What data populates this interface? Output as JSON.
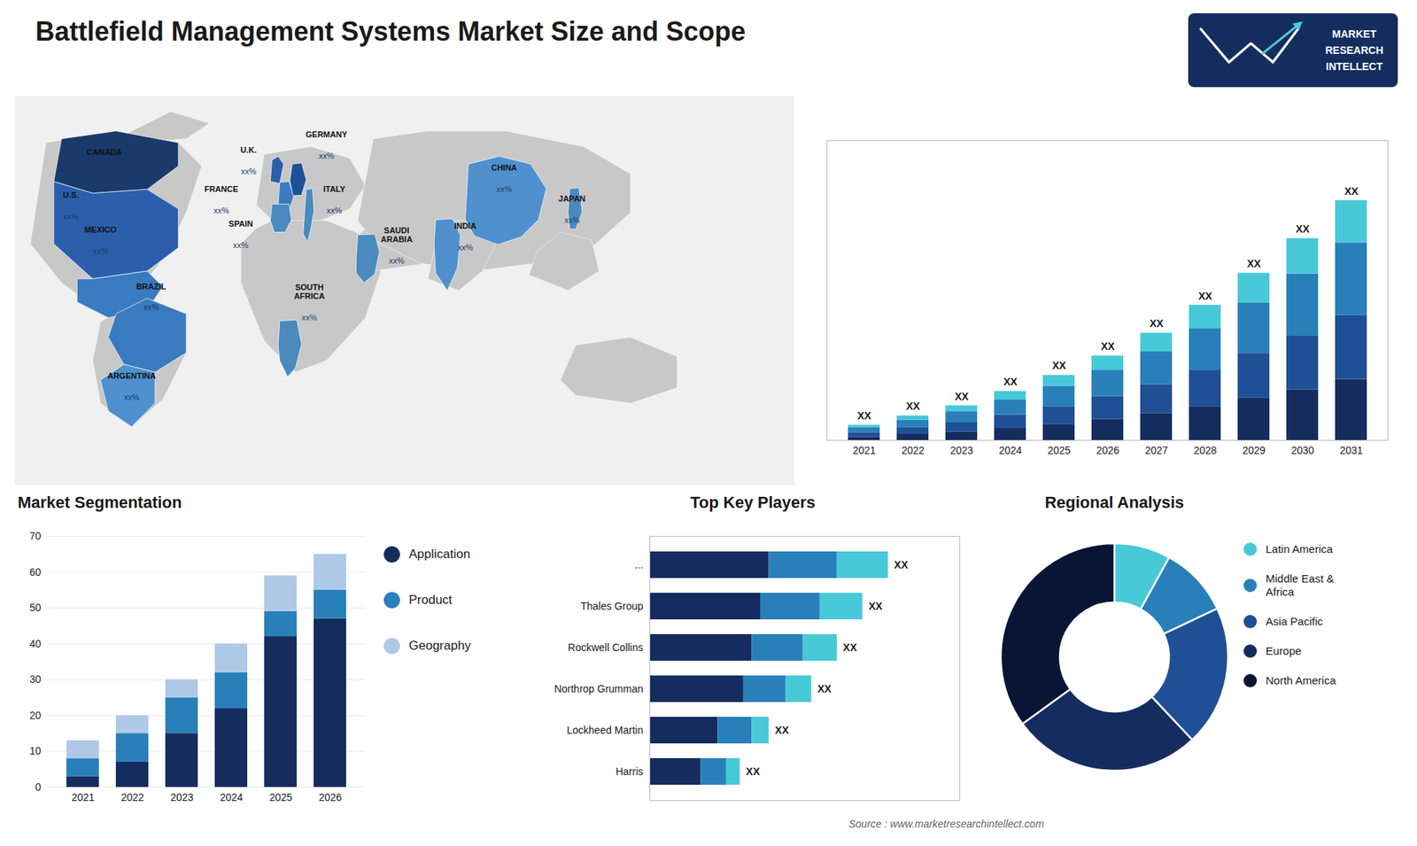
{
  "chart_data": [
    {
      "type": "bar",
      "title": "Battlefield Management Systems Market Size and Scope",
      "stacked": true,
      "categories": [
        "2021",
        "2022",
        "2023",
        "2024",
        "2025",
        "2026",
        "2027",
        "2028",
        "2029",
        "2030",
        "2031"
      ],
      "series": [
        {
          "color": "#152d5e",
          "values": [
            2.0,
            3.5,
            5.0,
            7.0,
            9.5,
            12.5,
            16.0,
            20.0,
            25.0,
            30.0,
            36.0
          ]
        },
        {
          "color": "#1f5096",
          "values": [
            2.5,
            4.0,
            5.5,
            8.0,
            10.5,
            13.5,
            17.0,
            21.5,
            26.5,
            32.0,
            38.0
          ]
        },
        {
          "color": "#2980b9",
          "values": [
            3.0,
            4.5,
            6.5,
            9.0,
            12.0,
            15.5,
            19.5,
            24.5,
            30.0,
            36.5,
            43.0
          ]
        },
        {
          "color": "#48c9d8",
          "values": [
            1.5,
            2.5,
            3.5,
            5.0,
            6.5,
            8.5,
            11.0,
            14.0,
            17.5,
            21.0,
            25.0
          ]
        }
      ],
      "ylim": [
        0,
        177.5
      ],
      "tick_labels": "x",
      "annotations": [
        {
          "text": "XX",
          "x": "2021"
        },
        {
          "text": "XX",
          "x": "2022"
        },
        {
          "text": "XX",
          "x": "2023"
        },
        {
          "text": "XX",
          "x": "2024"
        },
        {
          "text": "XX",
          "x": "2025"
        },
        {
          "text": "XX",
          "x": "2026"
        },
        {
          "text": "XX",
          "x": "2027"
        },
        {
          "text": "XX",
          "x": "2028"
        },
        {
          "text": "XX",
          "x": "2029"
        },
        {
          "text": "XX",
          "x": "2030"
        },
        {
          "text": "XX",
          "x": "2031"
        },
        {
          "text": "MARKET"
        },
        {
          "text": "RESEARCH"
        },
        {
          "text": "INTELLECT"
        }
      ]
    },
    {
      "type": "map",
      "categories": [
        "CANADA",
        "U.S.",
        "MEXICO",
        "BRAZIL",
        "ARGENTINA",
        "U.K.",
        "FRANCE",
        "SPAIN",
        "GERMANY",
        "ITALY",
        "SAUDI\nARABIA",
        "SOUTH\nAFRICA",
        "CHINA",
        "INDIA",
        "JAPAN"
      ],
      "annotations": [
        {
          "text": "xx%",
          "x": "CANADA"
        },
        {
          "text": "xx%",
          "x": "U.S."
        },
        {
          "text": "xx%",
          "x": "MEXICO"
        },
        {
          "text": "xx%",
          "x": "BRAZIL"
        },
        {
          "text": "xx%",
          "x": "ARGENTINA"
        },
        {
          "text": "xx%",
          "x": "U.K."
        },
        {
          "text": "xx%",
          "x": "FRANCE"
        },
        {
          "text": "xx%",
          "x": "SPAIN"
        },
        {
          "text": "xx%",
          "x": "GERMANY"
        },
        {
          "text": "xx%",
          "x": "ITALY"
        },
        {
          "text": "xx%",
          "x": "SAUDI\nARABIA"
        },
        {
          "text": "xx%",
          "x": "SOUTH\nAFRICA"
        },
        {
          "text": "xx%",
          "x": "CHINA"
        },
        {
          "text": "xx%",
          "x": "INDIA"
        },
        {
          "text": "xx%",
          "x": "JAPAN"
        }
      ]
    },
    {
      "type": "bar",
      "title": "Market Segmentation",
      "stacked": true,
      "categories": [
        "2021",
        "2022",
        "2023",
        "2024",
        "2025",
        "2026"
      ],
      "series": [
        {
          "name": "Application",
          "color": "#152d5e",
          "values": [
            3,
            7,
            15,
            22,
            42,
            47
          ]
        },
        {
          "name": "Product",
          "color": "#2980b9",
          "values": [
            5,
            8,
            10,
            10,
            7,
            8
          ]
        },
        {
          "name": "Geography",
          "color": "#b0c8e8",
          "values": [
            5,
            5,
            5,
            8,
            10,
            10
          ]
        }
      ],
      "ylim": [
        0,
        70
      ],
      "yticks": [
        0,
        10,
        20,
        30,
        40,
        50,
        60,
        70
      ],
      "grid": true,
      "legend": "right"
    },
    {
      "type": "bar",
      "title": "Top Key Players",
      "orientation": "horizontal",
      "stacked": true,
      "categories": [
        "...",
        "Thales Group",
        "Rockwell Collins",
        "Northrop Grumman",
        "Lockheed Martin",
        "Harris"
      ],
      "series": [
        {
          "color": "#152d5e",
          "values": [
            7.0,
            6.5,
            6.0,
            5.5,
            4.0,
            3.0
          ]
        },
        {
          "color": "#2980b9",
          "values": [
            4.0,
            3.5,
            3.0,
            2.5,
            2.0,
            1.5
          ]
        },
        {
          "color": "#48c9d8",
          "values": [
            3.0,
            2.5,
            2.0,
            1.5,
            1.0,
            0.8
          ]
        }
      ],
      "xlim": [
        0,
        18.2
      ],
      "tick_labels": "y",
      "annotations": [
        {
          "text": "XX",
          "y": "..."
        },
        {
          "text": "XX",
          "y": "Thales Group"
        },
        {
          "text": "XX",
          "y": "Rockwell Collins"
        },
        {
          "text": "XX",
          "y": "Northrop Grumman"
        },
        {
          "text": "XX",
          "y": "Lockheed Martin"
        },
        {
          "text": "XX",
          "y": "Harris"
        }
      ]
    },
    {
      "type": "pie",
      "title": "Regional Analysis",
      "categories": [
        "Latin America",
        "Middle East &\nAfrica",
        "Asia Pacific",
        "Europe",
        "North America"
      ],
      "values": [
        8,
        10,
        20,
        27,
        35
      ],
      "colors": [
        "#48c9d8",
        "#2980b9",
        "#1f5096",
        "#152d5e",
        "#0a1535"
      ],
      "legend": "right",
      "annotations": [
        {
          "text": "Source : www.marketresearchintellect.com"
        }
      ]
    }
  ]
}
